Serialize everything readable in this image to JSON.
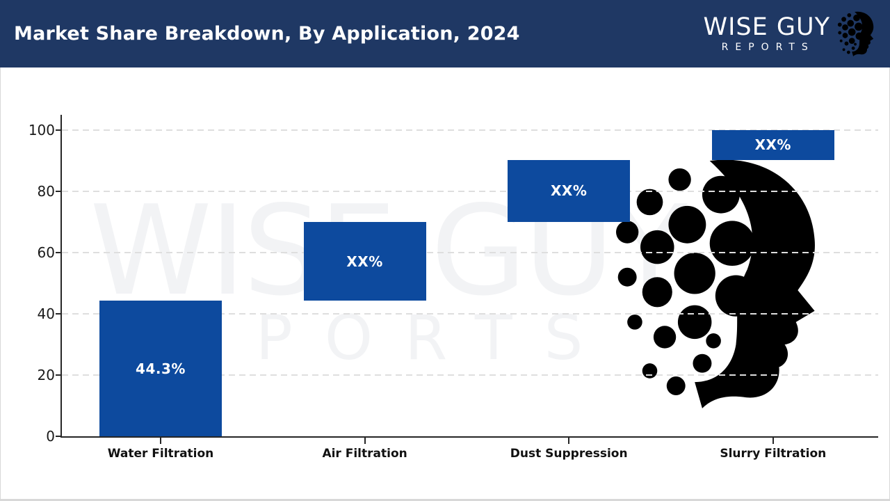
{
  "header": {
    "title": "Market Share Breakdown, By Application, 2024",
    "brand_line1": "WISE GUY",
    "brand_line2": "REPORTS",
    "bg_color": "#1f3864"
  },
  "watermark": {
    "line1": "WISE GUY",
    "line2": "REPORTS"
  },
  "chart_data": {
    "type": "bar",
    "subtype": "waterfall",
    "title": "Market Share Breakdown, By Application, 2024",
    "categories": [
      "Water Filtration",
      "Air Filtration",
      "Dust Suppression",
      "Slurry Filtration"
    ],
    "segments": [
      {
        "category": "Water Filtration",
        "start": 0,
        "end": 44.3,
        "value": 44.3,
        "label": "44.3%"
      },
      {
        "category": "Air Filtration",
        "start": 44.3,
        "end": 70.0,
        "value": 25.7,
        "label": "XX%"
      },
      {
        "category": "Dust Suppression",
        "start": 70.0,
        "end": 90.3,
        "value": 20.3,
        "label": "XX%"
      },
      {
        "category": "Slurry Filtration",
        "start": 90.3,
        "end": 100,
        "value": 9.7,
        "label": "XX%"
      }
    ],
    "xlabel": "",
    "ylabel": "",
    "ylim": [
      0,
      100
    ],
    "yticks": [
      "0",
      "20",
      "40",
      "60",
      "80",
      "100"
    ],
    "grid": "horizontal-dashed",
    "legend": "none",
    "bar_color": "#0d4a9e",
    "bar_label_color": "#ffffff",
    "axis_color": "#262626",
    "gridline_color": "#dedede"
  }
}
